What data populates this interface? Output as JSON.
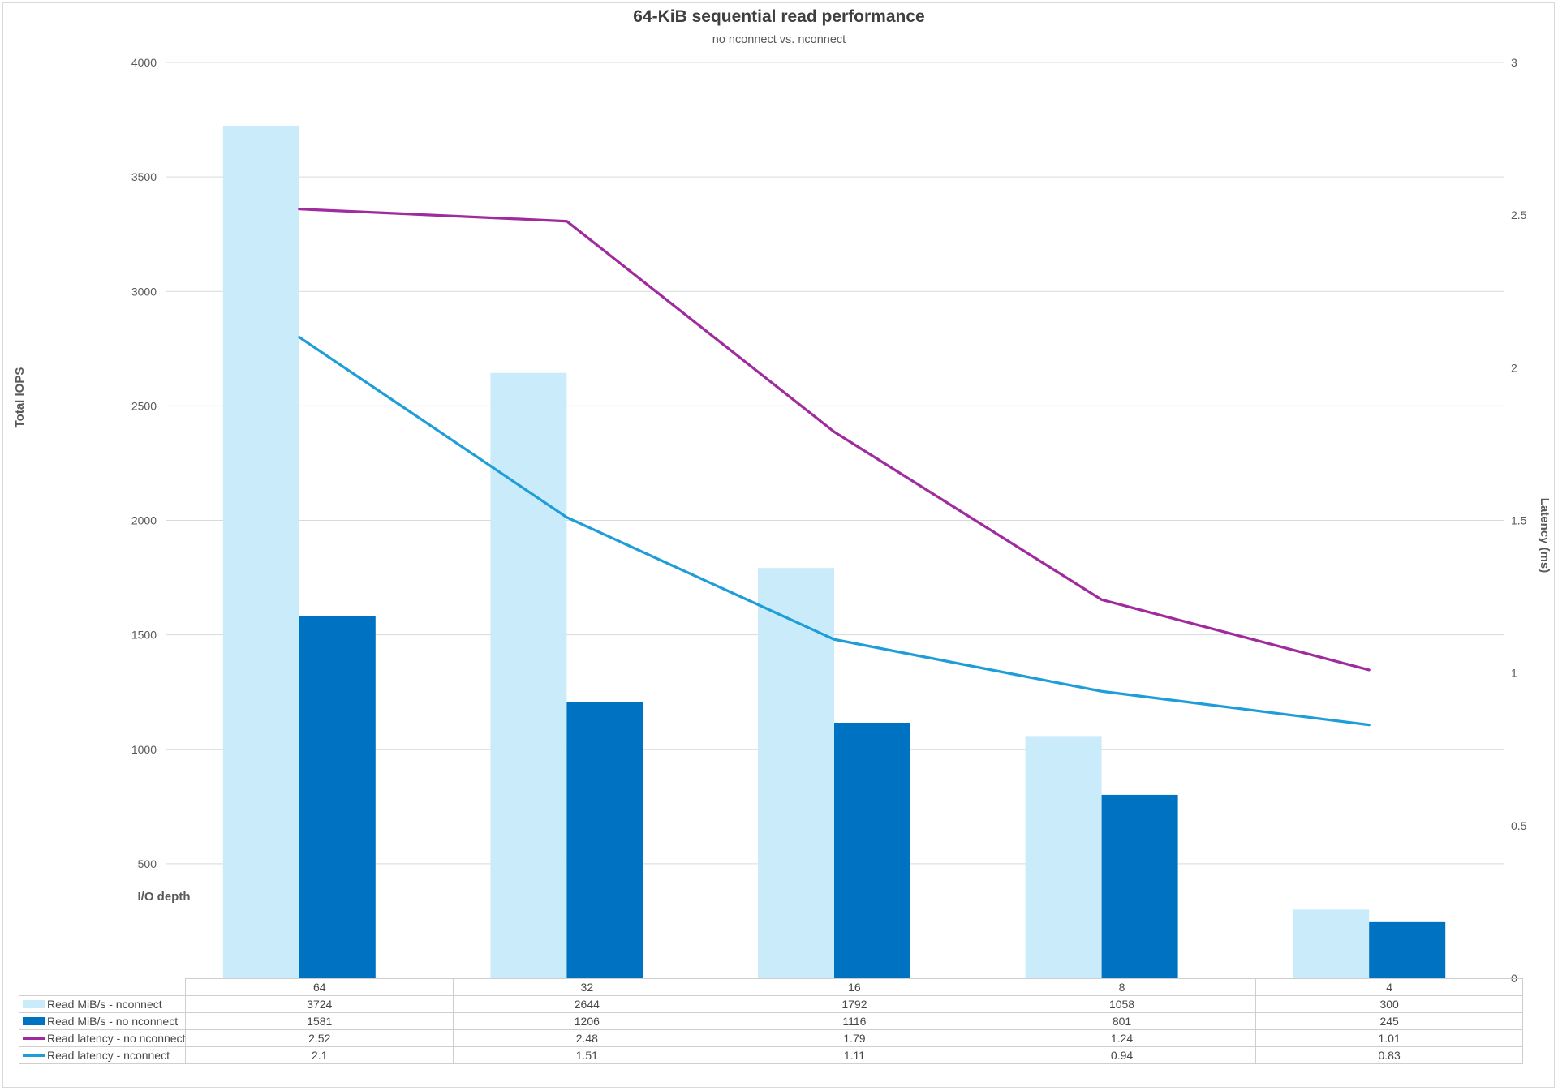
{
  "header": {
    "title": "64-KiB sequential read performance",
    "subtitle": "no nconnect vs. nconnect"
  },
  "chart_data": {
    "type": "combo-bar-line",
    "categories": [
      "64",
      "32",
      "16",
      "8",
      "4"
    ],
    "x_axis_title": "I/O depth",
    "y_left": {
      "title": "Total IOPS",
      "min": 0,
      "max": 4000,
      "tick_step": 500,
      "omit_zero_label": true
    },
    "y_right": {
      "title": "Latency (ms)",
      "min": 0,
      "max": 3,
      "tick_step": 0.5
    },
    "gridlines": true,
    "legend_position": "data-table-left",
    "series": [
      {
        "name": "Read MiB/s - nconnect",
        "kind": "bar",
        "axis": "left",
        "color": "#CAEBFA",
        "values": [
          3724,
          2644,
          1792,
          1058,
          300
        ]
      },
      {
        "name": "Read MiB/s - no nconnect",
        "kind": "bar",
        "axis": "left",
        "color": "#0072C2",
        "values": [
          1581,
          1206,
          1116,
          801,
          245
        ]
      },
      {
        "name": "Read latency - no nconnect",
        "kind": "line",
        "axis": "right",
        "color": "#A02B9E",
        "values": [
          2.52,
          2.48,
          1.79,
          1.24,
          1.01
        ]
      },
      {
        "name": "Read latency - nconnect",
        "kind": "line",
        "axis": "right",
        "color": "#1E9DD8",
        "values": [
          2.1,
          1.51,
          1.11,
          0.94,
          0.83
        ]
      }
    ],
    "colors": {
      "gridline": "#D9D9D9",
      "axis_text": "#595959",
      "table_border": "#CFCFCF",
      "table_text": "#474747",
      "title_text": "#3F3F3F"
    }
  }
}
